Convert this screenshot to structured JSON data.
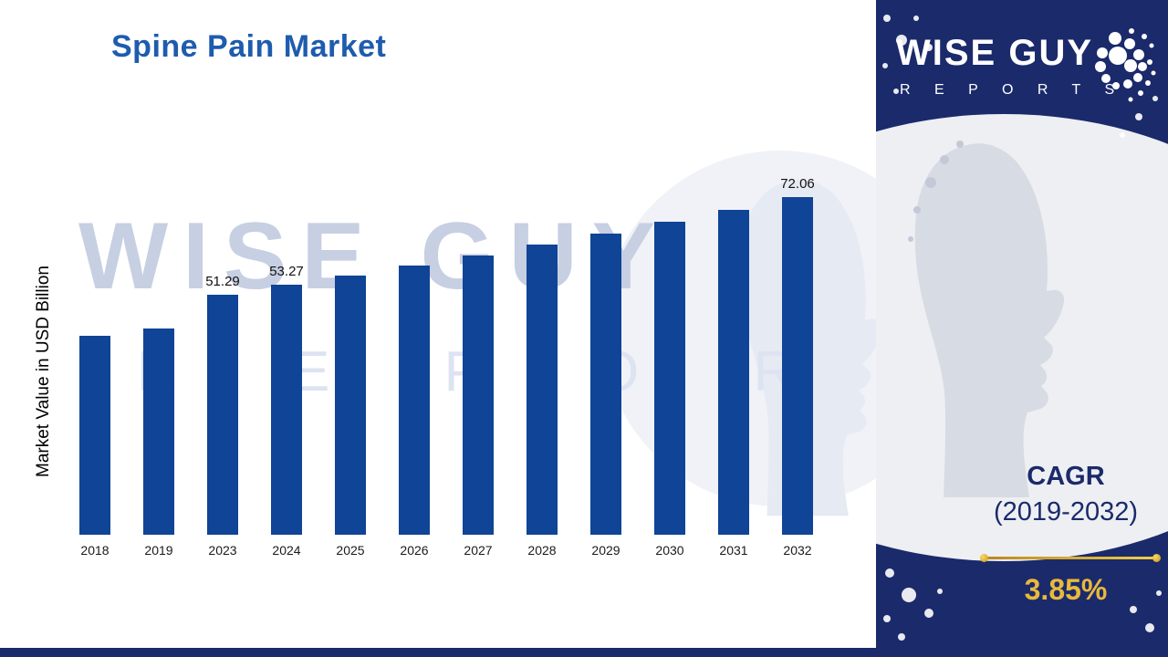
{
  "header": {
    "title": "Spine Pain Market"
  },
  "logo": {
    "line1": "WISE GUY",
    "line2": "R E P O R T S",
    "head_icon": "head-profile-dots-icon"
  },
  "watermark": {
    "line1": "WISE GUY",
    "line2": "R E P O R T S",
    "head_icon": "head-profile-icon"
  },
  "chart_data": {
    "type": "bar",
    "title": "Spine Pain Market",
    "xlabel": "",
    "ylabel": "Market Value in USD Billion",
    "categories": [
      "2018",
      "2019",
      "2023",
      "2024",
      "2025",
      "2026",
      "2027",
      "2028",
      "2029",
      "2030",
      "2031",
      "2032"
    ],
    "values": [
      42.5,
      44.1,
      51.29,
      53.27,
      55.3,
      57.4,
      59.6,
      61.9,
      64.3,
      66.8,
      69.3,
      72.06
    ],
    "value_labels": [
      "",
      "",
      "51.29",
      "53.27",
      "",
      "",
      "",
      "",
      "",
      "",
      "",
      "72.06"
    ],
    "ylim": [
      0,
      75
    ],
    "grid": false,
    "legend": false,
    "bar_color": "#0f4496"
  },
  "cagr": {
    "label": "CAGR",
    "range": "(2019-2032)",
    "value": "3.85%"
  },
  "colors": {
    "panel_navy": "#1b2a6b",
    "panel_light": "#edeff3",
    "head_gray": "#d7dbe4",
    "accent_gold": "#e8b93c",
    "bar_blue": "#0f4496",
    "title_blue": "#1e5cae",
    "watermark_blue": "#c7cfe2"
  }
}
